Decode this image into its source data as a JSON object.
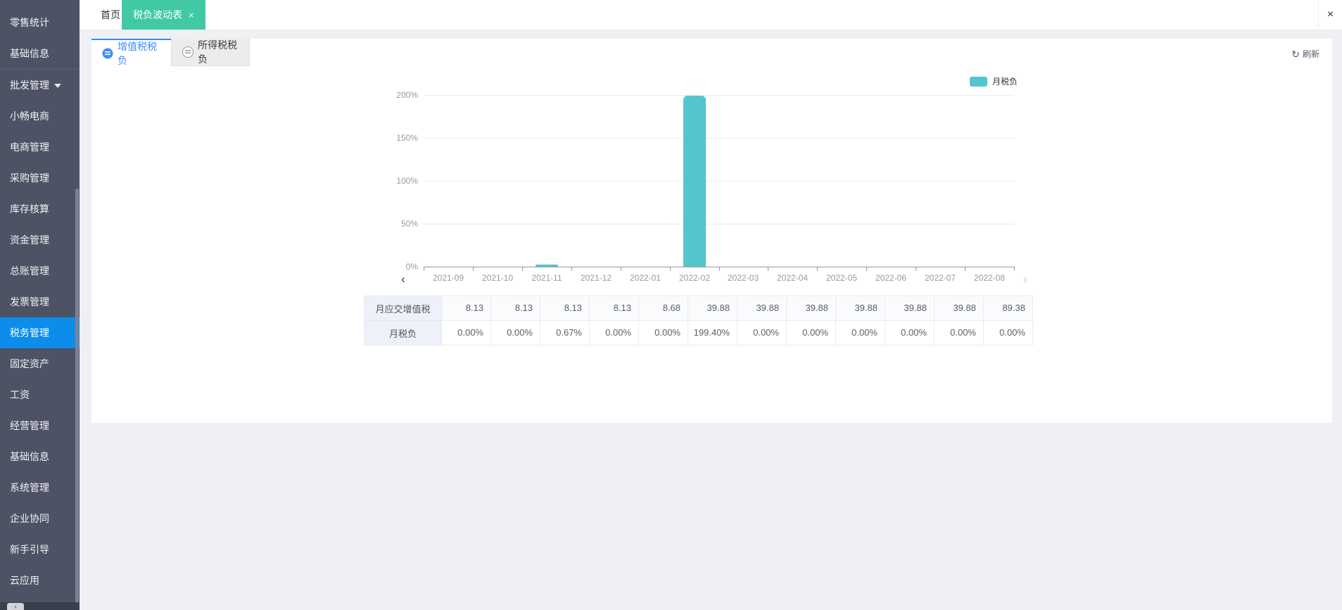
{
  "sidebar": {
    "items": [
      {
        "name": "retail-stats",
        "label": "零售统计"
      },
      {
        "name": "basic-info-top",
        "label": "基础信息",
        "divider_after": true
      },
      {
        "name": "wholesale-mgmt",
        "label": "批发管理",
        "expandable": true
      },
      {
        "name": "xiaochang-ecommerce",
        "label": "小畅电商"
      },
      {
        "name": "ecommerce-mgmt",
        "label": "电商管理"
      },
      {
        "name": "purchase-mgmt",
        "label": "采购管理"
      },
      {
        "name": "inventory-accounting",
        "label": "库存核算"
      },
      {
        "name": "funds-mgmt",
        "label": "资金管理"
      },
      {
        "name": "general-ledger",
        "label": "总账管理"
      },
      {
        "name": "invoice-mgmt",
        "label": "发票管理"
      },
      {
        "name": "tax-mgmt",
        "label": "税务管理",
        "active": true
      },
      {
        "name": "fixed-assets",
        "label": "固定资产"
      },
      {
        "name": "payroll",
        "label": "工资"
      },
      {
        "name": "operation-mgmt",
        "label": "经营管理"
      },
      {
        "name": "basic-info",
        "label": "基础信息"
      },
      {
        "name": "system-mgmt",
        "label": "系统管理"
      },
      {
        "name": "enterprise-collab",
        "label": "企业协同"
      },
      {
        "name": "beginner-guide",
        "label": "新手引导"
      },
      {
        "name": "cloud-apps",
        "label": "云应用"
      }
    ]
  },
  "tabbar": {
    "tabs": [
      {
        "label": "首页"
      },
      {
        "label": "税负波动表",
        "active": true,
        "closable": true
      }
    ]
  },
  "content": {
    "tabs": [
      {
        "label": "增值税税负",
        "active": true
      },
      {
        "label": "所得税税负"
      }
    ],
    "refresh_label": "刷新"
  },
  "icons": {
    "close": "×",
    "tab_close": "×",
    "chevron_left": "‹",
    "chevron_right": "›",
    "refresh": "↻",
    "footer_expand": "›"
  },
  "chart_data": {
    "type": "bar",
    "title": "",
    "categories": [
      "2021-09",
      "2021-10",
      "2021-11",
      "2021-12",
      "2022-01",
      "2022-02",
      "2022-03",
      "2022-04",
      "2022-05",
      "2022-06",
      "2022-07",
      "2022-08"
    ],
    "series": [
      {
        "name": "月税负",
        "values": [
          0,
          0,
          0.67,
          0,
          0,
          199.4,
          0,
          0,
          0,
          0,
          0,
          0
        ]
      }
    ],
    "y_ticks": [
      "0%",
      "50%",
      "100%",
      "150%",
      "200%"
    ],
    "ylim": [
      0,
      200
    ],
    "xlabel": "",
    "ylabel": "",
    "grid": true,
    "legend_position": "top-right",
    "bar_color": "#54c5ce"
  },
  "table": {
    "rows": [
      {
        "label": "月应交增值税",
        "values": [
          "8.13",
          "8.13",
          "8.13",
          "8.13",
          "8.68",
          "39.88",
          "39.88",
          "39.88",
          "39.88",
          "39.88",
          "39.88",
          "89.38"
        ]
      },
      {
        "label": "月税负",
        "values": [
          "0.00%",
          "0.00%",
          "0.67%",
          "0.00%",
          "0.00%",
          "199.40%",
          "0.00%",
          "0.00%",
          "0.00%",
          "0.00%",
          "0.00%",
          "0.00%"
        ]
      }
    ]
  },
  "colors": {
    "sidebar_bg": "#4d5264",
    "sidebar_active": "#0d8deb",
    "tab_active_green": "#41c9a5",
    "inner_tab_accent": "#3a8ee6",
    "bar_teal": "#54c5ce",
    "page_bg": "#eef0f4",
    "table_label_bg": "#eef1f9"
  }
}
